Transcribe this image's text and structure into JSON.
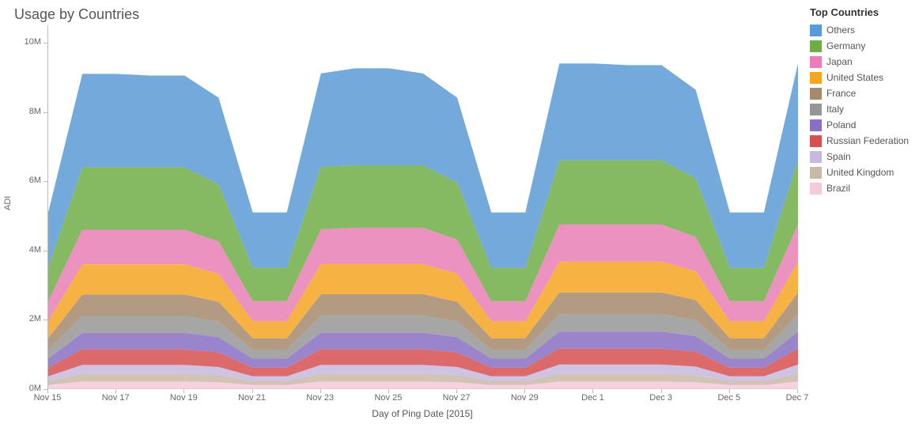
{
  "title": "Usage by Countries",
  "xaxis": {
    "label": "Day of Ping Date [2015]",
    "categories": [
      "Nov 15",
      "Nov 16",
      "Nov 17",
      "Nov 18",
      "Nov 19",
      "Nov 20",
      "Nov 21",
      "Nov 22",
      "Nov 23",
      "Nov 24",
      "Nov 25",
      "Nov 26",
      "Nov 27",
      "Nov 28",
      "Nov 29",
      "Nov 30",
      "Dec 1",
      "Dec 2",
      "Dec 3",
      "Dec 4",
      "Dec 5",
      "Dec 6",
      "Dec 7"
    ],
    "tick_labels": [
      "Nov 15",
      "Nov 17",
      "Nov 19",
      "Nov 21",
      "Nov 23",
      "Nov 25",
      "Nov 27",
      "Nov 29",
      "Dec 1",
      "Dec 3",
      "Dec 5",
      "Dec 7"
    ],
    "tick_indices": [
      0,
      2,
      4,
      6,
      8,
      10,
      12,
      14,
      16,
      18,
      20,
      22
    ],
    "label_fontsize": 12,
    "tick_fontsize": 11
  },
  "yaxis": {
    "label": "ADI",
    "ylim": [
      0,
      10500000
    ],
    "ticks": [
      0,
      2000000,
      4000000,
      6000000,
      8000000,
      10000000
    ],
    "tick_labels": [
      "0M",
      "2M",
      "4M",
      "6M",
      "8M",
      "10M"
    ],
    "label_fontsize": 11,
    "tick_fontsize": 11
  },
  "legend": {
    "title": "Top Countries",
    "title_fontsize": 13,
    "item_fontsize": 12,
    "items": [
      {
        "label": "Others",
        "color": "#5b9bd5"
      },
      {
        "label": "Germany",
        "color": "#70ad47"
      },
      {
        "label": "Japan",
        "color": "#e87fb5"
      },
      {
        "label": "United States",
        "color": "#f5a623"
      },
      {
        "label": "France",
        "color": "#a68a6d"
      },
      {
        "label": "Italy",
        "color": "#969696"
      },
      {
        "label": "Poland",
        "color": "#8870c4"
      },
      {
        "label": "Russian Federation",
        "color": "#d65050"
      },
      {
        "label": "Spain",
        "color": "#c7b8df"
      },
      {
        "label": "United Kingdom",
        "color": "#c9b9a8"
      },
      {
        "label": "Brazil",
        "color": "#f5c9d8"
      }
    ]
  },
  "chart": {
    "type": "area-stacked",
    "background_color": "#ffffff",
    "axis_color": "#bbbbbb",
    "text_color": "#555555",
    "fill_opacity": 0.85,
    "series": [
      {
        "name": "Brazil",
        "color": "#f5c9d8",
        "values": [
          120000,
          220000,
          220000,
          220000,
          220000,
          200000,
          120000,
          120000,
          220000,
          220000,
          220000,
          220000,
          200000,
          120000,
          120000,
          220000,
          220000,
          220000,
          220000,
          200000,
          120000,
          120000,
          220000
        ]
      },
      {
        "name": "United Kingdom",
        "color": "#c9b9a8",
        "values": [
          120000,
          230000,
          230000,
          230000,
          230000,
          210000,
          120000,
          120000,
          230000,
          230000,
          230000,
          230000,
          210000,
          120000,
          120000,
          230000,
          230000,
          230000,
          230000,
          210000,
          120000,
          120000,
          230000
        ]
      },
      {
        "name": "Spain",
        "color": "#c7b8df",
        "values": [
          130000,
          250000,
          250000,
          250000,
          250000,
          230000,
          130000,
          130000,
          250000,
          250000,
          250000,
          250000,
          230000,
          130000,
          130000,
          260000,
          260000,
          260000,
          260000,
          240000,
          130000,
          130000,
          260000
        ]
      },
      {
        "name": "Russian Federation",
        "color": "#d65050",
        "values": [
          250000,
          450000,
          450000,
          450000,
          450000,
          420000,
          250000,
          250000,
          450000,
          450000,
          450000,
          450000,
          420000,
          250000,
          250000,
          460000,
          460000,
          460000,
          460000,
          430000,
          250000,
          250000,
          460000
        ]
      },
      {
        "name": "Poland",
        "color": "#8870c4",
        "values": [
          260000,
          470000,
          470000,
          470000,
          470000,
          440000,
          260000,
          260000,
          480000,
          480000,
          480000,
          480000,
          440000,
          260000,
          260000,
          490000,
          490000,
          490000,
          490000,
          450000,
          260000,
          260000,
          490000
        ]
      },
      {
        "name": "Italy",
        "color": "#969696",
        "values": [
          260000,
          490000,
          490000,
          490000,
          490000,
          450000,
          260000,
          260000,
          490000,
          490000,
          490000,
          490000,
          450000,
          260000,
          260000,
          500000,
          500000,
          500000,
          500000,
          460000,
          260000,
          260000,
          500000
        ]
      },
      {
        "name": "France",
        "color": "#a68a6d",
        "values": [
          330000,
          620000,
          620000,
          620000,
          620000,
          570000,
          330000,
          330000,
          620000,
          620000,
          620000,
          620000,
          570000,
          330000,
          330000,
          630000,
          630000,
          630000,
          630000,
          580000,
          330000,
          330000,
          630000
        ]
      },
      {
        "name": "United States",
        "color": "#f5a623",
        "values": [
          490000,
          870000,
          870000,
          870000,
          870000,
          810000,
          490000,
          490000,
          870000,
          870000,
          870000,
          870000,
          810000,
          490000,
          490000,
          890000,
          890000,
          890000,
          890000,
          830000,
          490000,
          490000,
          890000
        ]
      },
      {
        "name": "Japan",
        "color": "#e87fb5",
        "values": [
          580000,
          1000000,
          1000000,
          1000000,
          1000000,
          930000,
          580000,
          580000,
          1000000,
          1050000,
          1050000,
          1050000,
          980000,
          580000,
          580000,
          1070000,
          1070000,
          1070000,
          1070000,
          990000,
          580000,
          580000,
          1070000
        ]
      },
      {
        "name": "Germany",
        "color": "#70ad47",
        "values": [
          960000,
          1800000,
          1800000,
          1800000,
          1800000,
          1650000,
          960000,
          960000,
          1800000,
          1800000,
          1800000,
          1800000,
          1650000,
          960000,
          960000,
          1850000,
          1850000,
          1850000,
          1850000,
          1700000,
          960000,
          960000,
          1850000
        ]
      },
      {
        "name": "Others",
        "color": "#5b9bd5",
        "values": [
          1600000,
          2700000,
          2700000,
          2650000,
          2650000,
          2500000,
          1600000,
          1600000,
          2700000,
          2800000,
          2800000,
          2650000,
          2450000,
          1600000,
          1600000,
          2800000,
          2800000,
          2750000,
          2750000,
          2550000,
          1600000,
          1600000,
          2800000
        ]
      }
    ]
  }
}
